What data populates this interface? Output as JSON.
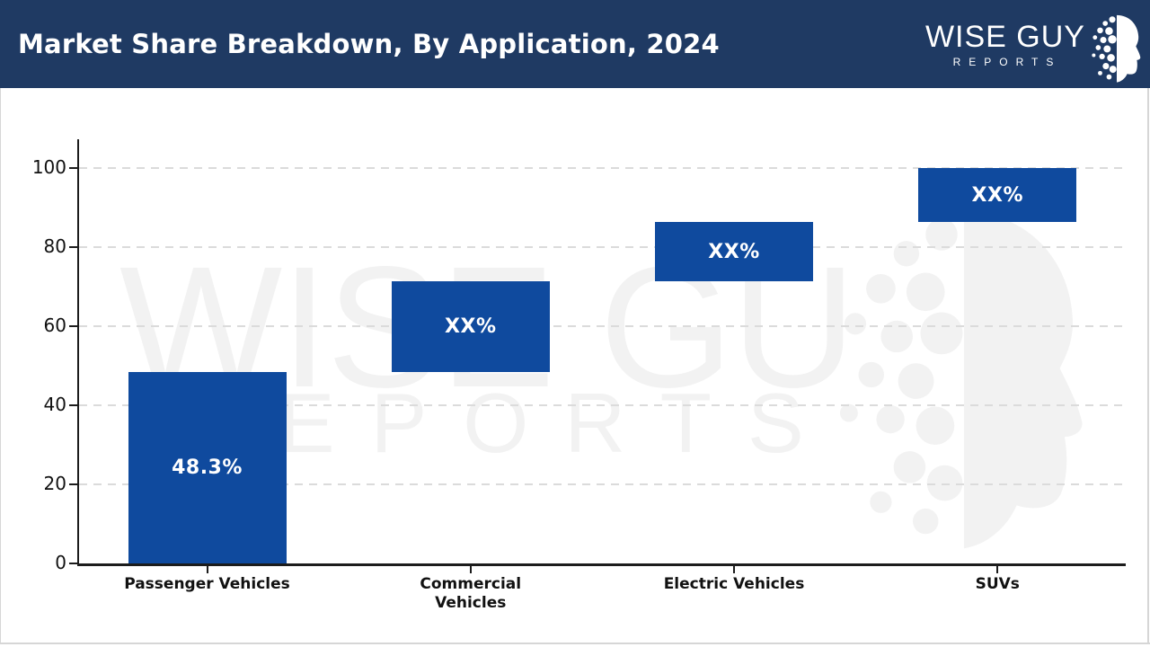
{
  "header": {
    "title": "Market Share Breakdown, By Application, 2024",
    "bg_color": "#1f3a63",
    "logo": {
      "line1": "WISE GUY",
      "line2": "REPORTS"
    }
  },
  "watermark": {
    "line1": "WISE GU",
    "line2": "REPORTS"
  },
  "chart_data": {
    "type": "bar",
    "subtype": "waterfall",
    "title": "Market Share Breakdown, By Application, 2024",
    "categories": [
      "Passenger Vehicles",
      "Commercial\nVehicles",
      "Electric Vehicles",
      "SUVs"
    ],
    "bars": [
      {
        "category": "Passenger Vehicles",
        "label_lines": "Passenger Vehicles",
        "start": 0,
        "end": 48.3,
        "label": "48.3%"
      },
      {
        "category": "Commercial Vehicles",
        "label_lines": "Commercial\nVehicles",
        "start": 48.3,
        "end": 71.3,
        "label": "XX%"
      },
      {
        "category": "Electric Vehicles",
        "label_lines": "Electric Vehicles",
        "start": 71.3,
        "end": 86.3,
        "label": "XX%"
      },
      {
        "category": "SUVs",
        "label_lines": "SUVs",
        "start": 86.3,
        "end": 100,
        "label": "XX%"
      }
    ],
    "y_ticks": [
      0,
      20,
      40,
      60,
      80,
      100
    ],
    "ylim": [
      0,
      107
    ],
    "xlabel": "",
    "ylabel": "",
    "grid": "horizontal-dashed",
    "legend": "none",
    "bar_color": "#0f4a9e",
    "axis_color": "#1c1c1c",
    "gridline_color": "#dbdbdb",
    "bar_label_color": "#ffffff"
  }
}
